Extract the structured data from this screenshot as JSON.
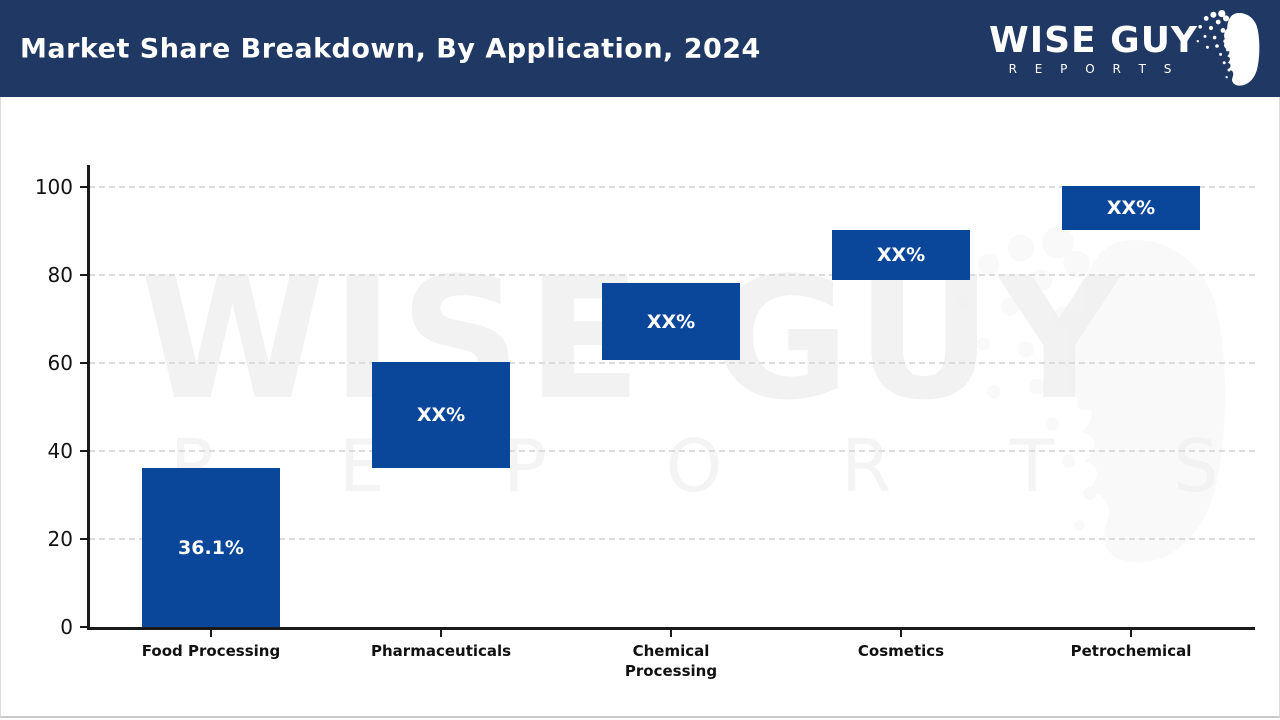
{
  "header": {
    "title": "Market Share Breakdown, By Application, 2024",
    "logo": {
      "name": "WISE GUY",
      "sub": "R E P O R T S"
    }
  },
  "watermark": {
    "line1": "WISE GUY",
    "line2": "R E P O R T S"
  },
  "colors": {
    "header_bg": "#1f3864",
    "bar": "#0a4699",
    "axis": "#1a1a1a",
    "gridline": "#dcdcdc",
    "bar_label": "#ffffff"
  },
  "chart_data": {
    "type": "bar",
    "subtype": "waterfall",
    "title": "Market Share Breakdown, By Application, 2024",
    "categories": [
      "Food Processing",
      "Pharmaceuticals",
      "Chemical Processing",
      "Cosmetics",
      "Petrochemical"
    ],
    "bars": [
      {
        "category": "Food Processing",
        "start": 0,
        "end": 36.1,
        "label": "36.1%"
      },
      {
        "category": "Pharmaceuticals",
        "start": 36.1,
        "end": 60.2,
        "label": "XX%"
      },
      {
        "category": "Chemical Processing",
        "start": 60.6,
        "end": 78.2,
        "label": "XX%"
      },
      {
        "category": "Cosmetics",
        "start": 78.9,
        "end": 90.2,
        "label": "XX%"
      },
      {
        "category": "Petrochemical",
        "start": 90.2,
        "end": 100.2,
        "label": "XX%"
      }
    ],
    "xlabel": "",
    "ylabel": "",
    "yticks": [
      0,
      20,
      40,
      60,
      80,
      100
    ],
    "ylim": [
      0,
      105
    ],
    "grid": "dashed-horizontal",
    "legend": "none"
  }
}
